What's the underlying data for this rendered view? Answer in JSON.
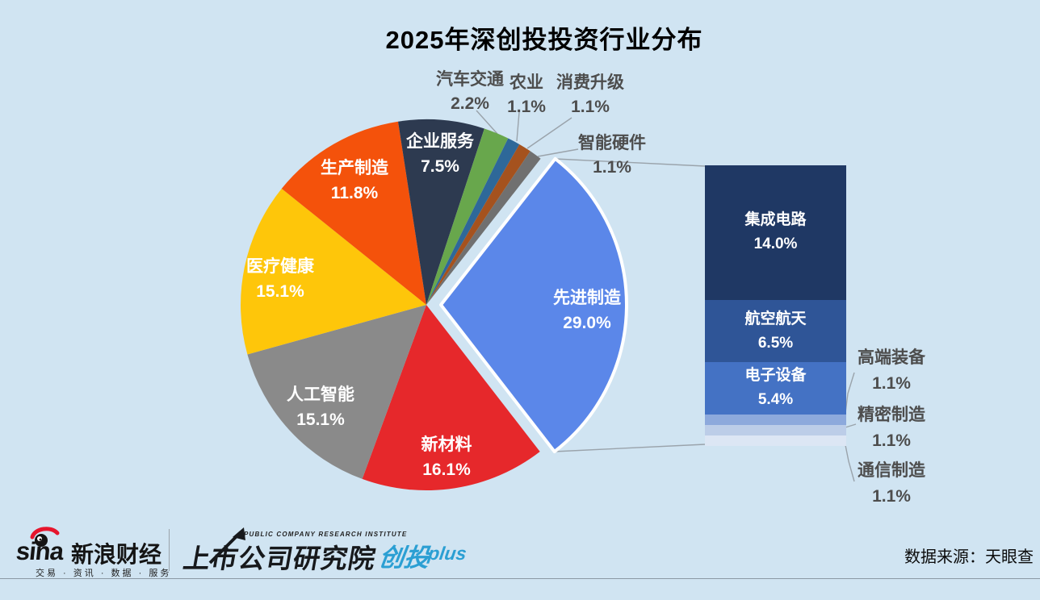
{
  "chart_data": {
    "type": "pie",
    "title": "2025年深创投投资行业分布",
    "unit": "%",
    "legend_position": "none",
    "pie": {
      "start_angle_deg": 52,
      "items": [
        {
          "name": "先进制造",
          "value": 29.0,
          "pct": "29.0%",
          "color": "#5b87e9",
          "exploded": true
        },
        {
          "name": "新材料",
          "value": 16.1,
          "pct": "16.1%",
          "color": "#e6282b",
          "exploded": false
        },
        {
          "name": "人工智能",
          "value": 15.1,
          "pct": "15.1%",
          "color": "#8a8a8a",
          "exploded": false
        },
        {
          "name": "医疗健康",
          "value": 15.1,
          "pct": "15.1%",
          "color": "#fec60a",
          "exploded": false
        },
        {
          "name": "生产制造",
          "value": 11.8,
          "pct": "11.8%",
          "color": "#f4520b",
          "exploded": false
        },
        {
          "name": "企业服务",
          "value": 7.5,
          "pct": "7.5%",
          "color": "#2d3a50",
          "exploded": false
        },
        {
          "name": "汽车交通",
          "value": 2.2,
          "pct": "2.2%",
          "color": "#68a74c",
          "exploded": false
        },
        {
          "name": "农业",
          "value": 1.1,
          "pct": "1.1%",
          "color": "#2e6899",
          "exploded": false
        },
        {
          "name": "消费升级",
          "value": 1.1,
          "pct": "1.1%",
          "color": "#a5521e",
          "exploded": false
        },
        {
          "name": "智能硬件",
          "value": 1.1,
          "pct": "1.1%",
          "color": "#707070",
          "exploded": false
        }
      ]
    },
    "breakdown_bar": {
      "parent": "先进制造",
      "items": [
        {
          "name": "集成电路",
          "value": 14.0,
          "pct": "14.0%",
          "color": "#1f3864"
        },
        {
          "name": "航空航天",
          "value": 6.5,
          "pct": "6.5%",
          "color": "#2f5597"
        },
        {
          "name": "电子设备",
          "value": 5.4,
          "pct": "5.4%",
          "color": "#4472c4"
        },
        {
          "name": "高端装备",
          "value": 1.1,
          "pct": "1.1%",
          "color": "#8da9dc"
        },
        {
          "name": "精密制造",
          "value": 1.1,
          "pct": "1.1%",
          "color": "#bccde8"
        },
        {
          "name": "通信制造",
          "value": 1.1,
          "pct": "1.1%",
          "color": "#dce6f4"
        }
      ]
    }
  },
  "footer": {
    "sina_word": "sina",
    "sina_brand": "新浪财经",
    "sina_tagline": "交易 · 资讯 · 数据 · 服务",
    "institute_en": "PUBLIC COMPANY RESEARCH INSTITUTE",
    "institute_cn": "上市公司研究院",
    "plus_brand_cn": "创投",
    "plus_brand_suffix": "plus",
    "source": "数据来源：天眼查"
  }
}
